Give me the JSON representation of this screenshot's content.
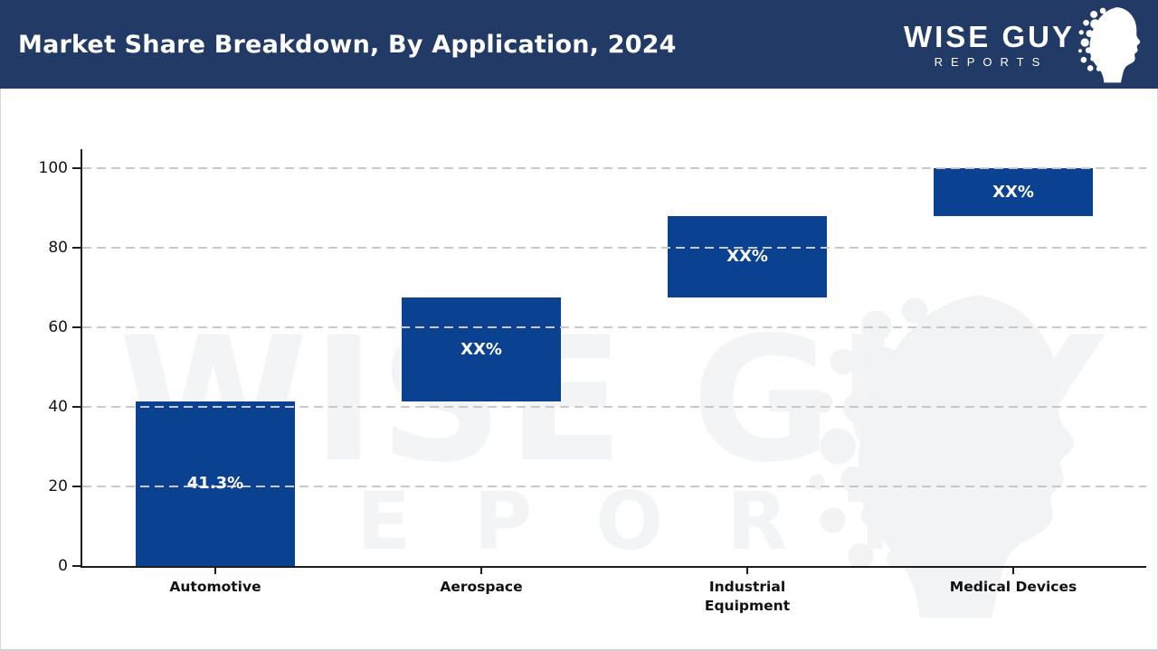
{
  "header": {
    "title": "Market Share Breakdown, By Application, 2024",
    "bg_color": "#213a66",
    "logo": {
      "line1": "WISE GUY",
      "line2": "REPORTS"
    }
  },
  "watermark": {
    "line1": "WISE GUY",
    "line2": "REPORTS"
  },
  "chart_data": {
    "type": "bar",
    "subtype": "waterfall-stacked",
    "title": "Market Share Breakdown, By Application, 2024",
    "categories": [
      "Automotive",
      "Aerospace",
      "Industrial\nEquipment",
      "Medical Devices"
    ],
    "series": [
      {
        "name": "Automotive",
        "start": 0,
        "end": 41.3,
        "value": 41.3,
        "label": "41.3%"
      },
      {
        "name": "Aerospace",
        "start": 41.3,
        "end": 67.5,
        "value": 26.2,
        "label": "XX%"
      },
      {
        "name": "Industrial Equipment",
        "start": 67.5,
        "end": 88,
        "value": 20.5,
        "label": "XX%"
      },
      {
        "name": "Medical Devices",
        "start": 88,
        "end": 100,
        "value": 12,
        "label": "XX%"
      }
    ],
    "yticks": [
      0,
      20,
      40,
      60,
      80,
      100
    ],
    "ylim": [
      0,
      104.8
    ],
    "unit": "%",
    "xlabel": "",
    "ylabel": "",
    "grid": true,
    "grid_style": "dashed",
    "legend": false,
    "bar_color": "#0a4191",
    "bar_label_color": "#ffffff",
    "axis_color": "#1c1c1c",
    "grid_color": "#c9c9c9"
  }
}
